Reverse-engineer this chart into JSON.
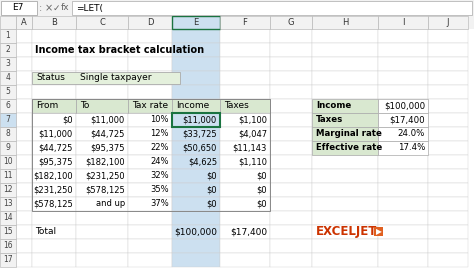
{
  "title": "Income tax bracket calculation",
  "formula_bar_cell": "E7",
  "formula_bar_text": "=LET(",
  "status_label": "Status",
  "status_value": "Single taxpayer",
  "col_headers": [
    "From",
    "To",
    "Tax rate",
    "Income",
    "Taxes"
  ],
  "col_letters": [
    "A",
    "B",
    "C",
    "D",
    "E",
    "F",
    "G",
    "H",
    "I",
    "J"
  ],
  "table_data": [
    [
      "$0",
      "$11,000",
      "10%",
      "$11,000",
      "$1,100"
    ],
    [
      "$11,000",
      "$44,725",
      "12%",
      "$33,725",
      "$4,047"
    ],
    [
      "$44,725",
      "$95,375",
      "22%",
      "$50,650",
      "$11,143"
    ],
    [
      "$95,375",
      "$182,100",
      "24%",
      "$4,625",
      "$1,110"
    ],
    [
      "$182,100",
      "$231,250",
      "32%",
      "$0",
      "$0"
    ],
    [
      "$231,250",
      "$578,125",
      "35%",
      "$0",
      "$0"
    ],
    [
      "$578,125",
      "and up",
      "37%",
      "$0",
      "$0"
    ]
  ],
  "total_label": "Total",
  "total_income": "$100,000",
  "total_taxes": "$17,400",
  "summary_labels": [
    "Income",
    "Taxes",
    "Marginal rate",
    "Effective rate"
  ],
  "summary_values": [
    "$100,000",
    "$17,400",
    "24.0%",
    "17.4%"
  ],
  "exceljet_text": "EXCELJET",
  "exceljet_color": "#cc3300",
  "selected_cell_border": "#1a7340",
  "selected_col_bg": "#cce0f0",
  "table_header_bg": "#d9e8d0",
  "summary_label_bg": "#d9e8d0",
  "status_box_bg": "#e4f0dc",
  "white": "#ffffff",
  "sheet_bg": "#ffffff",
  "formula_bar_bg": "#f2f2f2",
  "col_row_header_bg": "#f2f2f2",
  "grid_line": "#d0d0d0",
  "col_header_border": "#b0b0b0"
}
